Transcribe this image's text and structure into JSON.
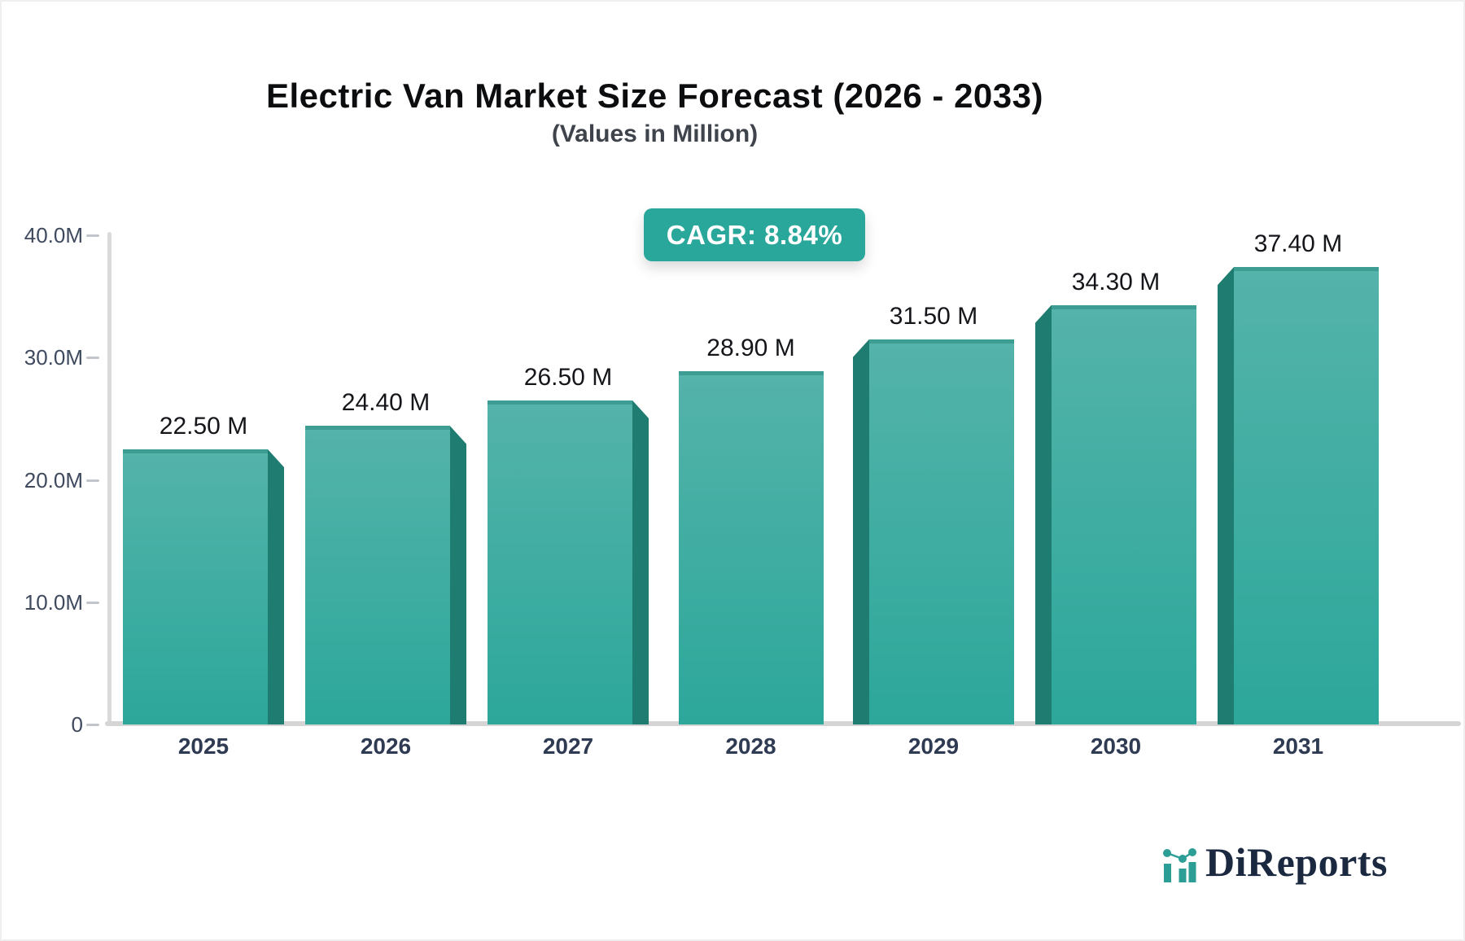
{
  "title": "Electric Van Market Size Forecast (2026 - 2033)",
  "subtitle": "(Values in Million)",
  "cagr_badge_label": "CAGR: 8.84%",
  "watermark_text": "DiReports",
  "colors": {
    "accent_teal": "#2aa79b",
    "bar_face_top": "#54b3aa",
    "bar_face_bottom": "#2ca79a",
    "bar_top_edge": "#3e9d93",
    "bar_side_shadow": "#1f7c71",
    "axis_line": "#d5d5d5",
    "value_label": "#14161a",
    "axis_label": "#3f4a5f",
    "year_label": "#2f3b52",
    "logo_navy": "#1b2940"
  },
  "chart_data": {
    "type": "bar",
    "style": "3d-bars",
    "title": "Electric Van Market Size Forecast (2026 - 2033)",
    "subtitle": "(Values in Million)",
    "annotation": "CAGR: 8.84%",
    "categories": [
      "2025",
      "2026",
      "2027",
      "2028",
      "2029",
      "2030",
      "2031"
    ],
    "values": [
      22.5,
      24.4,
      26.5,
      28.9,
      31.5,
      34.3,
      37.4
    ],
    "value_labels": [
      "22.50 M",
      "24.40 M",
      "26.50 M",
      "28.90 M",
      "31.50 M",
      "34.30 M",
      "37.40 M"
    ],
    "xlabel": "",
    "ylabel": "",
    "ylim": [
      0,
      40
    ],
    "y_ticks": [
      {
        "label": "40.0M",
        "value": 40
      },
      {
        "label": "30.0M",
        "value": 30
      },
      {
        "label": "20.0M",
        "value": 20
      },
      {
        "label": "10.0M",
        "value": 10
      },
      {
        "label": "0",
        "value": 0
      }
    ],
    "grid": false,
    "legend": false
  }
}
